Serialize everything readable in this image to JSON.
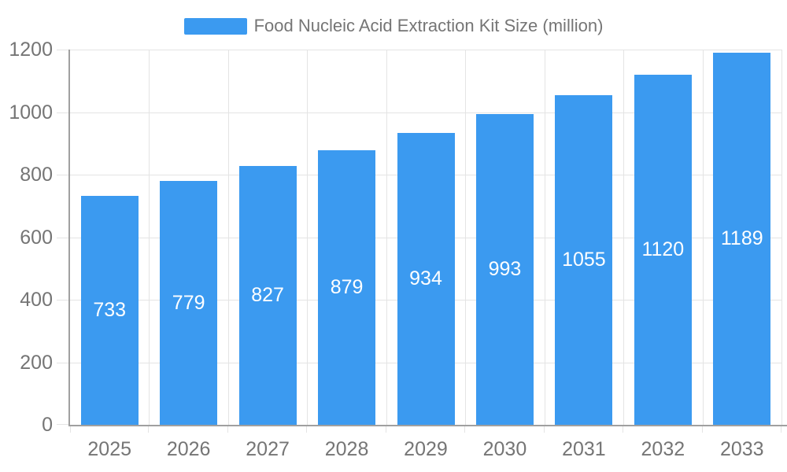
{
  "legend": {
    "label": "Food Nucleic Acid Extraction Kit Size (million)"
  },
  "chart_data": {
    "type": "bar",
    "title": "Food Nucleic Acid Extraction Kit Size (million)",
    "categories": [
      "2025",
      "2026",
      "2027",
      "2028",
      "2029",
      "2030",
      "2031",
      "2032",
      "2033"
    ],
    "values": [
      733,
      779,
      827,
      879,
      934,
      993,
      1055,
      1120,
      1189
    ],
    "series_name": "Food Nucleic Acid Extraction Kit Size (million)",
    "xlabel": "",
    "ylabel": "",
    "ylim": [
      0,
      1200
    ],
    "yticks": [
      0,
      200,
      400,
      600,
      800,
      1000,
      1200
    ],
    "bar_label_position": "inside-center",
    "legend_position": "top-center",
    "grid": "horizontal-and-vertical",
    "colors": {
      "bar": "#3B9AF0",
      "bar_label": "#FFFFFF",
      "axis_line": "#A0A0A0",
      "gridline": "#E4E4E4",
      "tick_label": "#757575",
      "legend_text": "#757575",
      "background": "#FFFFFF"
    }
  }
}
